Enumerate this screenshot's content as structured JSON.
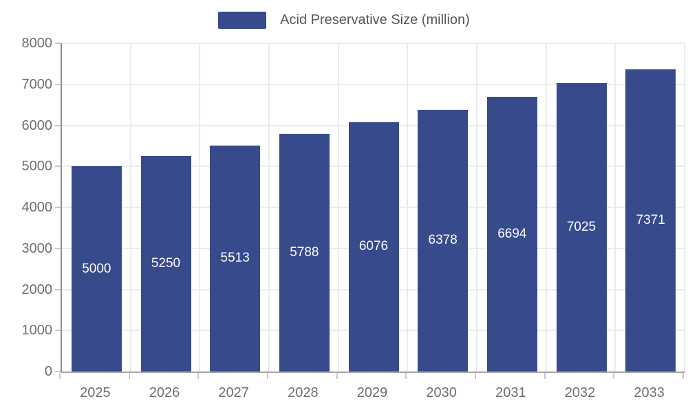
{
  "legend": {
    "label": "Acid Preservative Size (million)"
  },
  "colors": {
    "bar": "#364a8c",
    "bar_label": "#ffffff",
    "grid": "#ebebeb",
    "y_axis_line": "#8f8f8f",
    "x_axis_line": "#a6a6a6",
    "tick": "#c9c9c9",
    "axis_text": "#6e6e6e",
    "legend_text": "#555555",
    "background": "#ffffff"
  },
  "chart_data": {
    "type": "bar",
    "title": "Acid Preservative Size (million)",
    "categories": [
      "2025",
      "2026",
      "2027",
      "2028",
      "2029",
      "2030",
      "2031",
      "2032",
      "2033"
    ],
    "values": [
      5000,
      5250,
      5513,
      5788,
      6076,
      6378,
      6694,
      7025,
      7371
    ],
    "xlabel": "",
    "ylabel": "",
    "ylim": [
      0,
      8000
    ],
    "ytick_step": 1000,
    "ytick_labels": [
      "0",
      "1000",
      "2000",
      "3000",
      "4000",
      "5000",
      "6000",
      "7000",
      "8000"
    ],
    "grid": true,
    "legend_position": "top-center",
    "value_labels": "inside-center-white"
  }
}
